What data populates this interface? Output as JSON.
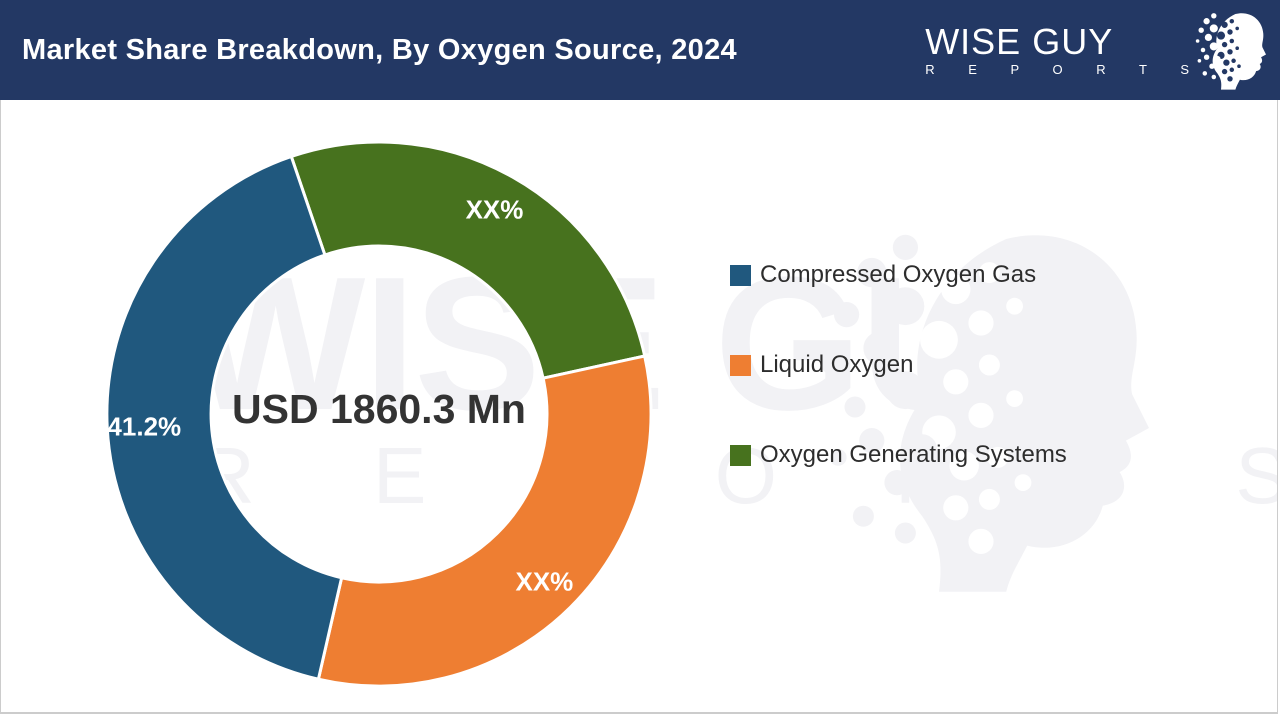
{
  "header": {
    "title": "Market Share Breakdown, By Oxygen Source, 2024",
    "background_color": "#233864",
    "logo": {
      "line1": "WISE GUY",
      "line2": "R E P O R T S"
    }
  },
  "watermark": {
    "line1": "WISE GUY",
    "line2": "R E P O R T S"
  },
  "legend": [
    {
      "label": "Compressed Oxygen Gas",
      "color": "#20587E"
    },
    {
      "label": "Liquid Oxygen",
      "color": "#EE7E32"
    },
    {
      "label": "Oxygen Generating Systems",
      "color": "#47721E"
    }
  ],
  "chart_data": {
    "type": "pie",
    "donut": true,
    "title": "Market Share Breakdown, By Oxygen Source, 2024",
    "center_label": "USD 1860.3 Mn",
    "start_angle_deg_clockwise_from_top": -18.8,
    "slices": [
      {
        "name": "Oxygen Generating Systems",
        "value_pct": 26.8,
        "display_label": "XX%",
        "color": "#47721E"
      },
      {
        "name": "Liquid Oxygen",
        "value_pct": 32.0,
        "display_label": "XX%",
        "color": "#EE7E32"
      },
      {
        "name": "Compressed Oxygen Gas",
        "value_pct": 41.2,
        "display_label": "41.2%",
        "color": "#20587E"
      }
    ],
    "legend_position": "right",
    "colors": {
      "center_text": "#333333",
      "slice_label_text": "#ffffff"
    }
  }
}
